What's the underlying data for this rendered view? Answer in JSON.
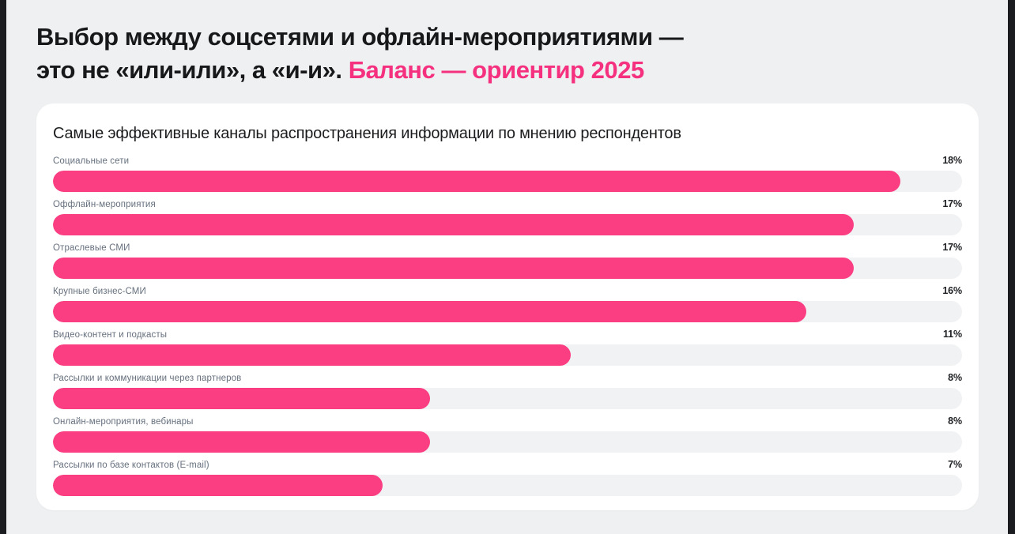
{
  "page": {
    "heading_line1": "Выбор между соцсетями и офлайн-мероприятиями —",
    "heading_line2_plain": "это не «или-или», а «и-и». ",
    "heading_line2_accent": "Баланс — ориентир 2025"
  },
  "card": {
    "title": "Самые эффективные каналы распространения информации по мнению респондентов"
  },
  "chart_data": {
    "type": "bar",
    "orientation": "horizontal",
    "title": "Самые эффективные каналы распространения информации по мнению респондентов",
    "categories": [
      "Социальные сети",
      "Оффлайн-мероприятия",
      "Отраслевые СМИ",
      "Крупные бизнес-СМИ",
      "Видео-контент и подкасты",
      "Рассылки и коммуникации через партнеров",
      "Онлайн-мероприятия, вебинары",
      "Рассылки по базе контактов (E-mail)"
    ],
    "values": [
      18,
      17,
      17,
      16,
      11,
      8,
      8,
      7
    ],
    "value_labels": [
      "18%",
      "17%",
      "17%",
      "16%",
      "11%",
      "8%",
      "8%",
      "7%"
    ],
    "unit": "%",
    "xlim": [
      0,
      19.3
    ],
    "grid": false,
    "legend": "none"
  },
  "colors": {
    "page_bg": "#EEF0F2",
    "edge_strip": "#1B1C1F",
    "card_bg": "#FFFFFF",
    "heading_text": "#17181A",
    "heading_accent": "#F5317F",
    "bar_fill": "#FB3E81",
    "bar_track": "#F1F2F4",
    "category_label": "#66707E",
    "value_label": "#202225"
  }
}
